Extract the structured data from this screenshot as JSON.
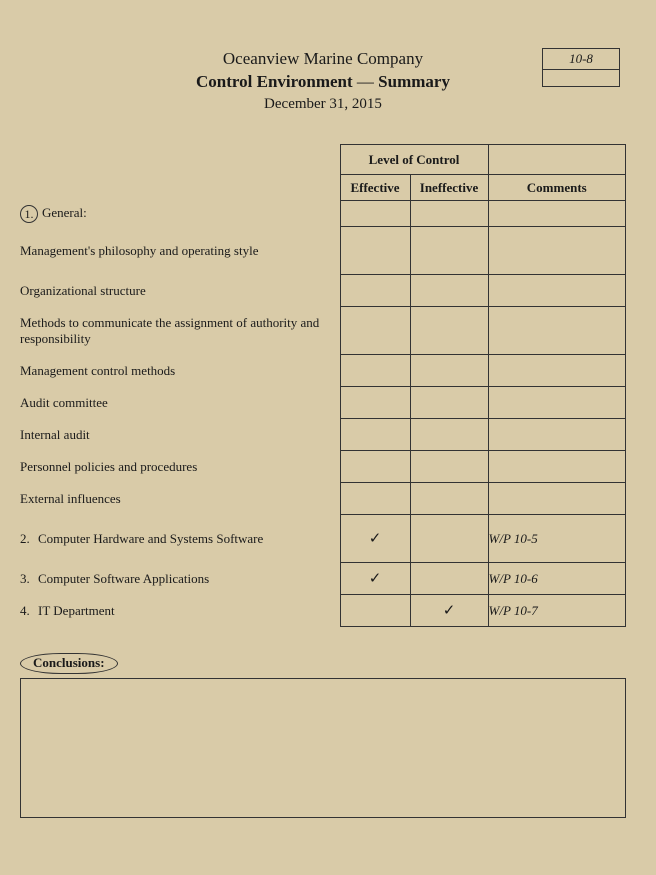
{
  "reference": "10-8",
  "header": {
    "company": "Oceanview Marine Company",
    "title_bold_left": "Control Environment",
    "title_dash": " — ",
    "title_bold_right": "Summary",
    "date": "December 31, 2015"
  },
  "columns": {
    "level_of_control": "Level of Control",
    "effective": "Effective",
    "ineffective": "Ineffective",
    "comments": "Comments"
  },
  "section1": {
    "number": "1.",
    "label": "General:",
    "items": [
      "Management's philosophy and operating style",
      "Organizational structure",
      "Methods to communicate the assignment of authority and responsibility",
      "Management control methods",
      "Audit committee",
      "Internal audit",
      "Personnel policies and procedures",
      "External influences"
    ]
  },
  "rows": [
    {
      "num": "2.",
      "label": "Computer Hardware and Systems Software",
      "effective": "✓",
      "ineffective": "",
      "comment": "W/P 10-5"
    },
    {
      "num": "3.",
      "label": "Computer Software Applications",
      "effective": "✓",
      "ineffective": "",
      "comment": "W/P 10-6"
    },
    {
      "num": "4.",
      "label": "IT Department",
      "effective": "",
      "ineffective": "✓",
      "comment": "W/P 10-7"
    }
  ],
  "conclusions_label": "Conclusions:",
  "checkmark": "✓",
  "colors": {
    "page_bg": "#d9cba8",
    "text": "#1a1a1a",
    "border": "#333333"
  }
}
